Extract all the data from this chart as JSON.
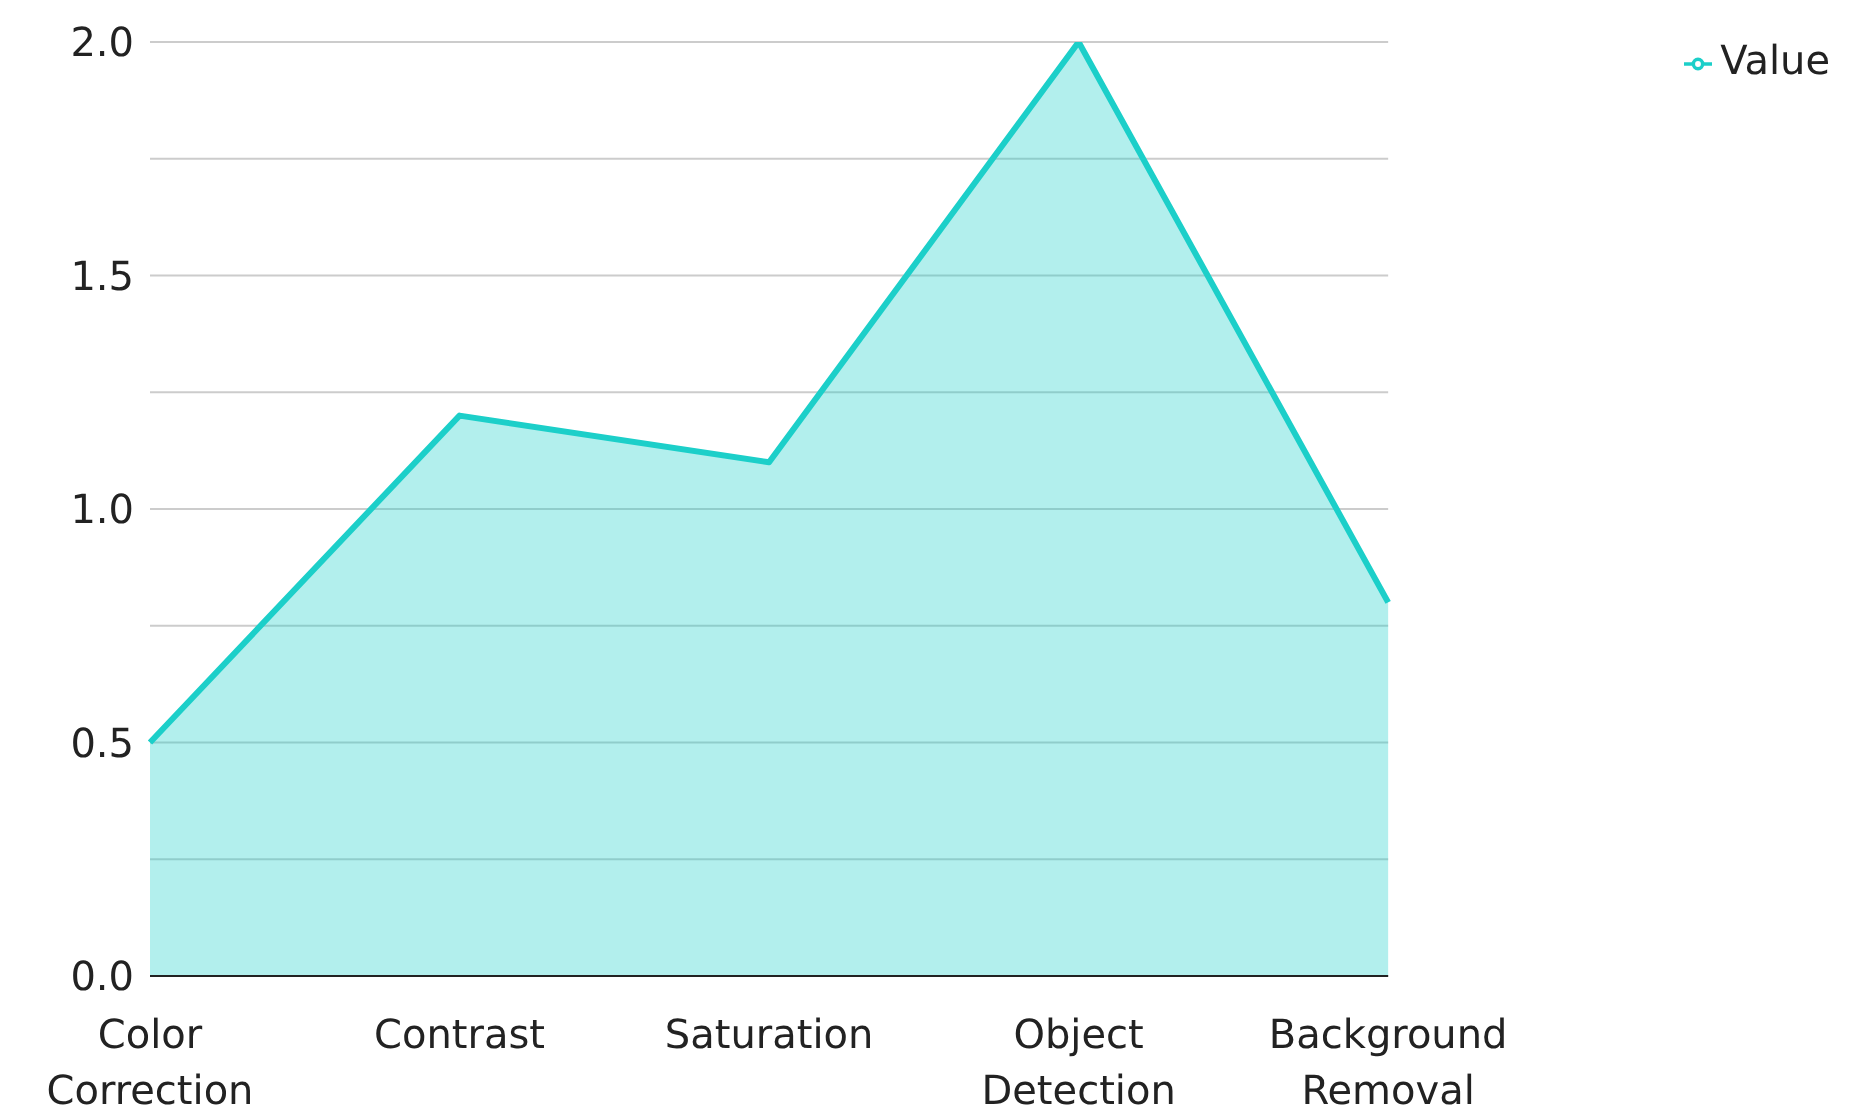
{
  "chart_data": {
    "type": "area",
    "categories": [
      "Color Correction",
      "Contrast",
      "Saturation",
      "Object Detection",
      "Background Removal"
    ],
    "series": [
      {
        "name": "Value",
        "color": "#1ccfc9",
        "values": [
          0.5,
          1.2,
          1.1,
          2.0,
          0.8
        ]
      }
    ],
    "ylim": [
      0,
      2
    ],
    "yticks": [
      {
        "value": 0,
        "label": "0.0"
      },
      {
        "value": 0.25,
        "label": null
      },
      0.5,
      {
        "value": 0.75,
        "label": null
      },
      {
        "value": 1,
        "label": "1.0"
      },
      {
        "value": 1.25,
        "label": null
      },
      1.5,
      {
        "value": 1.75,
        "label": null
      },
      {
        "value": 2,
        "label": "2.0"
      }
    ],
    "grid": "y",
    "legend": "top right"
  }
}
